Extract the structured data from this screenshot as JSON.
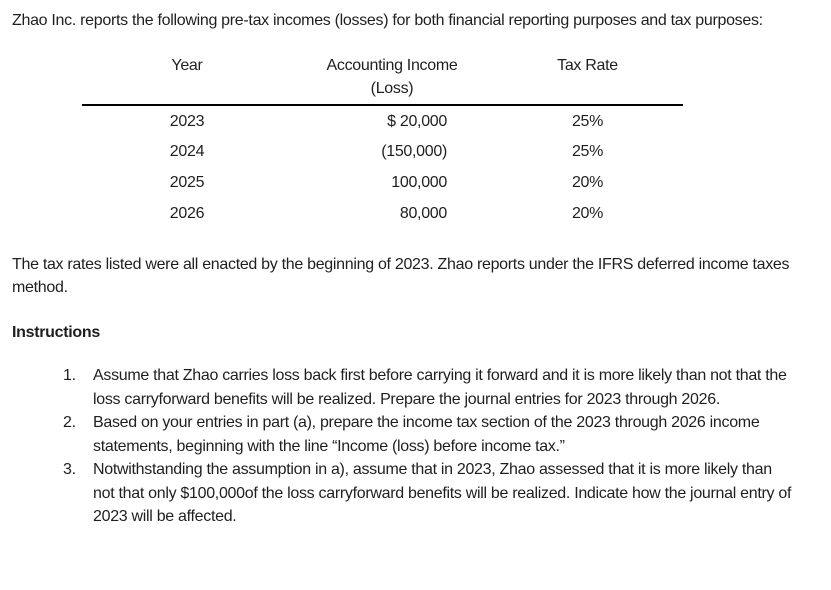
{
  "page": {
    "intro": "Zhao Inc. reports the following pre-tax incomes (losses) for both financial reporting purposes and tax purposes:",
    "note": "The tax rates listed were all enacted by the beginning of 2023. Zhao reports under the IFRS deferred income taxes method.",
    "instructions_heading": "Instructions",
    "instructions": [
      {
        "number": "1.",
        "text": "Assume that Zhao carries loss back first before carrying it forward and it is more likely than not that the loss carryforward benefits will be realized. Prepare the journal entries for 2023 through 2026."
      },
      {
        "number": "2.",
        "text": "Based on your entries in part (a), prepare the income tax section of the 2023 through 2026 income statements, beginning with the line “Income (loss) before income tax.”"
      },
      {
        "number": "3.",
        "text": "Notwithstanding the assumption in a), assume that in 2023, Zhao assessed that it is more likely than not that only $100,000of the loss carryforward benefits will be realized. Indicate how the journal entry of 2023 will be affected."
      }
    ]
  },
  "table": {
    "headers": {
      "year": "Year",
      "income_line1": "Accounting Income",
      "income_line2": "(Loss)",
      "tax_rate": "Tax Rate"
    },
    "rows": [
      {
        "year": "2023",
        "income": "$ 20,000",
        "tax_rate": "25%"
      },
      {
        "year": "2024",
        "income": "(150,000)",
        "tax_rate": "25%"
      },
      {
        "year": "2025",
        "income": "100,000",
        "tax_rate": "20%"
      },
      {
        "year": "2026",
        "income": "80,000",
        "tax_rate": "20%"
      }
    ]
  },
  "colors": {
    "text": "#1f1f1f",
    "background": "#ffffff",
    "table_rule": "#000000"
  }
}
